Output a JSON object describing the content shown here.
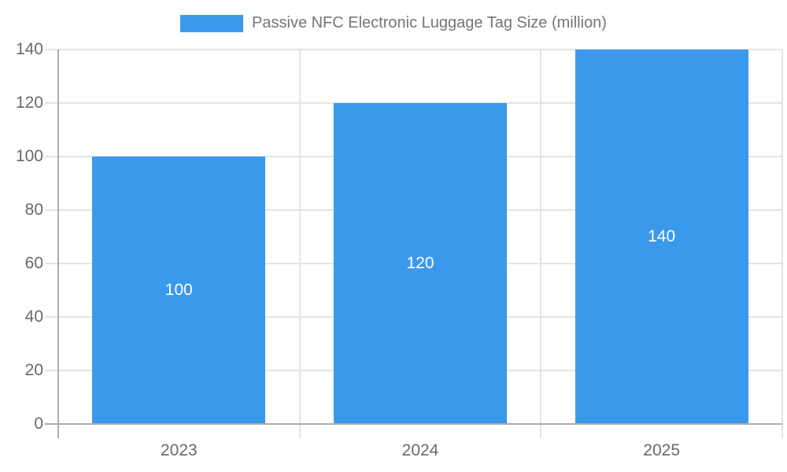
{
  "chart_data": {
    "type": "bar",
    "title": "Passive NFC Electronic Luggage Tag Size (million)",
    "legend": "Passive NFC Electronic Luggage Tag Size (million)",
    "legend_position": "top-center",
    "categories": [
      "2023",
      "2024",
      "2025"
    ],
    "series": [
      {
        "name": "Passive NFC Electronic Luggage Tag Size (million)",
        "values": [
          100,
          120,
          140
        ]
      }
    ],
    "values": [
      100,
      120,
      140
    ],
    "value_labels": [
      "100",
      "120",
      "140"
    ],
    "value_label_position": "inside-center",
    "xlabel": "",
    "ylabel": "",
    "ylim": [
      0,
      140
    ],
    "yticks": [
      0,
      20,
      40,
      60,
      80,
      100,
      120,
      140
    ],
    "grid": true
  },
  "colors": {
    "background": "#FFFFFF",
    "bar": "#3B99EC",
    "gridline": "#E4E4E4",
    "axis": "#ADADAD",
    "axis_label": "#696969",
    "legend_text": "#757575",
    "value_label": "#FFFFFF"
  }
}
